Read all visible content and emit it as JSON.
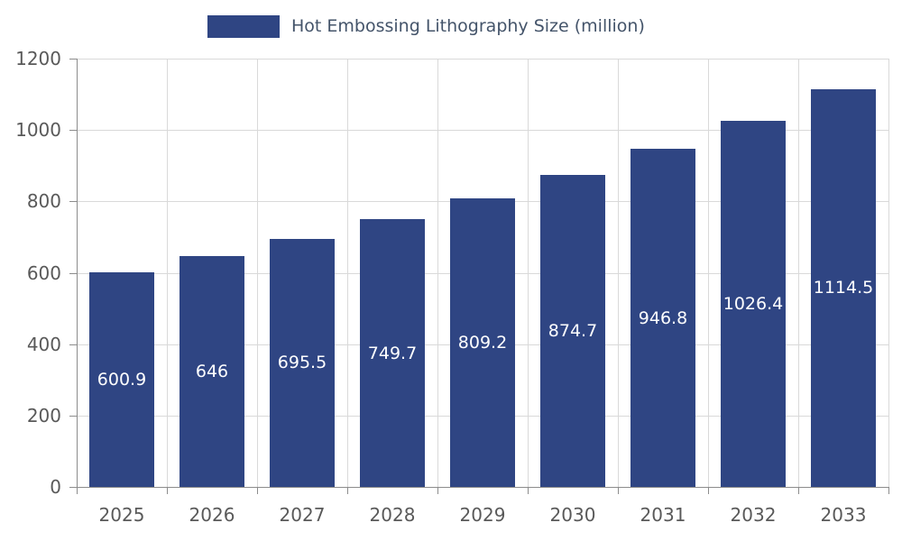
{
  "chart_data": {
    "type": "bar",
    "title": "Hot Embossing Lithography Size (million)",
    "categories": [
      "2025",
      "2026",
      "2027",
      "2028",
      "2029",
      "2030",
      "2031",
      "2032",
      "2033"
    ],
    "values": [
      600.9,
      646,
      695.5,
      749.7,
      809.2,
      874.7,
      946.8,
      1026.4,
      1114.5
    ],
    "value_labels": [
      "600.9",
      "646",
      "695.5",
      "749.7",
      "809.2",
      "874.7",
      "946.8",
      "1026.4",
      "1114.5"
    ],
    "xlabel": "",
    "ylabel": "",
    "ylim": [
      0,
      1200
    ],
    "yticks": [
      0,
      200,
      400,
      600,
      800,
      1000,
      1200
    ],
    "ytick_labels": [
      "0",
      "200",
      "400",
      "600",
      "800",
      "1000",
      "1200"
    ],
    "grid": true,
    "legend_position": "top"
  },
  "colors": {
    "bar": "#2f4583",
    "legend_text": "#44546a",
    "axis_text": "#595959",
    "grid_line": "#d9d9d9",
    "axis_line": "#8c8c8c",
    "value_label_text": "#ffffff",
    "background": "#ffffff"
  }
}
